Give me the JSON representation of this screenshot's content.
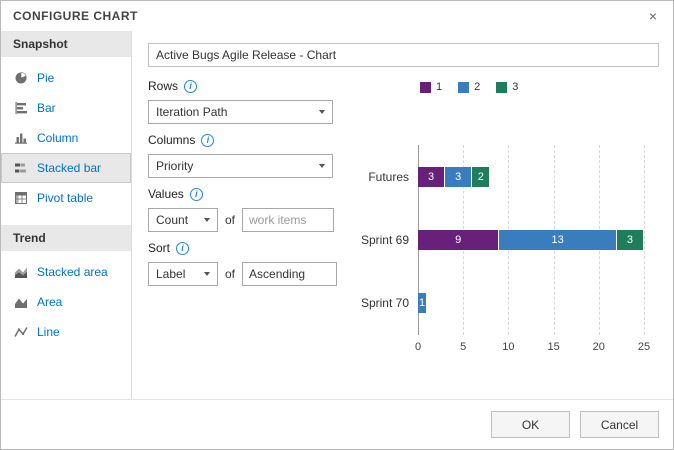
{
  "dialog": {
    "title": "CONFIGURE CHART",
    "close_icon": "×"
  },
  "sidebar": {
    "sections": [
      {
        "title": "Snapshot",
        "items": [
          {
            "label": "Pie",
            "icon": "pie-chart-icon",
            "selected": false
          },
          {
            "label": "Bar",
            "icon": "bar-chart-icon",
            "selected": false
          },
          {
            "label": "Column",
            "icon": "column-chart-icon",
            "selected": false
          },
          {
            "label": "Stacked bar",
            "icon": "stacked-bar-chart-icon",
            "selected": true
          },
          {
            "label": "Pivot table",
            "icon": "pivot-table-icon",
            "selected": false
          }
        ]
      },
      {
        "title": "Trend",
        "items": [
          {
            "label": "Stacked area",
            "icon": "stacked-area-chart-icon",
            "selected": false
          },
          {
            "label": "Area",
            "icon": "area-chart-icon",
            "selected": false
          },
          {
            "label": "Line",
            "icon": "line-chart-icon",
            "selected": false
          }
        ]
      }
    ]
  },
  "form": {
    "chart_name": "Active Bugs Agile Release - Chart",
    "rows_label": "Rows",
    "rows_value": "Iteration Path",
    "columns_label": "Columns",
    "columns_value": "Priority",
    "values_label": "Values",
    "values_aggregation": "Count",
    "values_of": "of",
    "values_placeholder": "work items",
    "sort_label": "Sort",
    "sort_field": "Label",
    "sort_of": "of",
    "sort_value": "Ascending"
  },
  "chart_data": {
    "type": "bar",
    "orientation": "horizontal",
    "stacked": true,
    "categories": [
      "Futures",
      "Sprint 69",
      "Sprint 70"
    ],
    "series": [
      {
        "name": "1",
        "color": "#68217a",
        "values": [
          3,
          9,
          0
        ]
      },
      {
        "name": "2",
        "color": "#3a7dbf",
        "values": [
          3,
          13,
          1
        ]
      },
      {
        "name": "3",
        "color": "#1e7d5b",
        "values": [
          2,
          3,
          0
        ]
      }
    ],
    "xlim": [
      0,
      25
    ],
    "xticks": [
      0,
      5,
      10,
      15,
      20,
      25
    ],
    "legend_position": "top",
    "grid": "dashed-vertical"
  },
  "footer": {
    "ok_label": "OK",
    "cancel_label": "Cancel"
  }
}
